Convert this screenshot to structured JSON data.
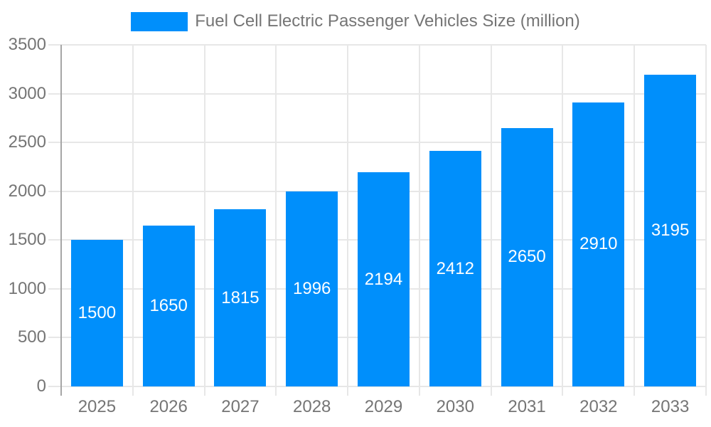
{
  "legend": {
    "label": "Fuel Cell Electric Passenger Vehicles Size (million)"
  },
  "chart_data": {
    "type": "bar",
    "title": "Fuel Cell Electric Passenger Vehicles Size (million)",
    "categories": [
      "2025",
      "2026",
      "2027",
      "2028",
      "2029",
      "2030",
      "2031",
      "2032",
      "2033"
    ],
    "series": [
      {
        "name": "Fuel Cell Electric Passenger Vehicles Size (million)",
        "values": [
          1500,
          1650,
          1815,
          1996,
          2194,
          2412,
          2650,
          2910,
          3195
        ]
      }
    ],
    "values": [
      1500,
      1650,
      1815,
      1996,
      2194,
      2412,
      2650,
      2910,
      3195
    ],
    "value_labels": [
      1500,
      1650,
      1815,
      1996,
      2194,
      2412,
      2650,
      2910,
      3195
    ],
    "value_label_position": "inside-center",
    "xlabel": "",
    "ylabel": "",
    "ylim": [
      0,
      3500
    ],
    "yticks": [
      0,
      500,
      1000,
      1500,
      2000,
      2500,
      3000,
      3500
    ],
    "grid": true,
    "legend_position": "top-center",
    "colors": {
      "bar": "#008FFB",
      "axis_text": "#757575",
      "legend_text": "#757575",
      "value_text": "#ffffff",
      "gridline": "#e7e7e7",
      "axis_line": "#a6a6a6",
      "background": "#ffffff"
    }
  }
}
